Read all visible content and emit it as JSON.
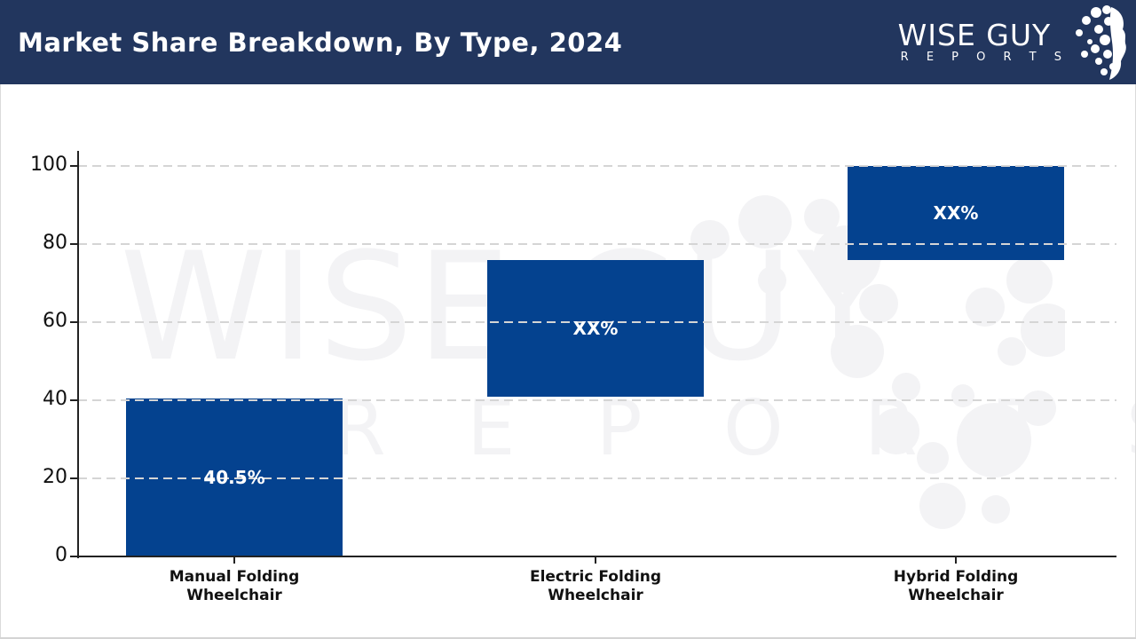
{
  "header": {
    "title": "Market Share Breakdown, By Type, 2024",
    "background_color": "#22365e",
    "logo": {
      "word1": "WISE GUY",
      "word2": "R E P O R T S"
    }
  },
  "watermark": {
    "word1": "WISE GUY",
    "word2": "R E P O R T S"
  },
  "chart_data": {
    "type": "bar",
    "variant": "waterfall-stacked-segments",
    "title": "Market Share Breakdown, By Type, 2024",
    "categories": [
      "Manual Folding Wheelchair",
      "Electric Folding Wheelchair",
      "Hybrid Folding Wheelchair"
    ],
    "bars": [
      {
        "name": "Manual Folding Wheelchair",
        "label_lines": [
          "Manual Folding",
          "Wheelchair"
        ],
        "value_label": "40.5%",
        "from": 0,
        "to": 40.5
      },
      {
        "name": "Electric Folding Wheelchair",
        "label_lines": [
          "Electric Folding",
          "Wheelchair"
        ],
        "value_label": "XX%",
        "from": 41,
        "to": 76
      },
      {
        "name": "Hybrid Folding Wheelchair",
        "label_lines": [
          "Hybrid Folding",
          "Wheelchair"
        ],
        "value_label": "XX%",
        "from": 76,
        "to": 100
      }
    ],
    "y_ticks": [
      0,
      20,
      40,
      60,
      80,
      100
    ],
    "ylim": [
      0,
      104
    ],
    "xlabel": "",
    "ylabel": "",
    "legend": null,
    "grid": {
      "horizontal": true,
      "style": "dashed",
      "color": "#d5d5d5",
      "drawn_over_bars": true
    },
    "bar_color": "#04428f",
    "value_label_color": "#ffffff",
    "axis_color": "#222222",
    "tick_label_color": "#111111"
  }
}
